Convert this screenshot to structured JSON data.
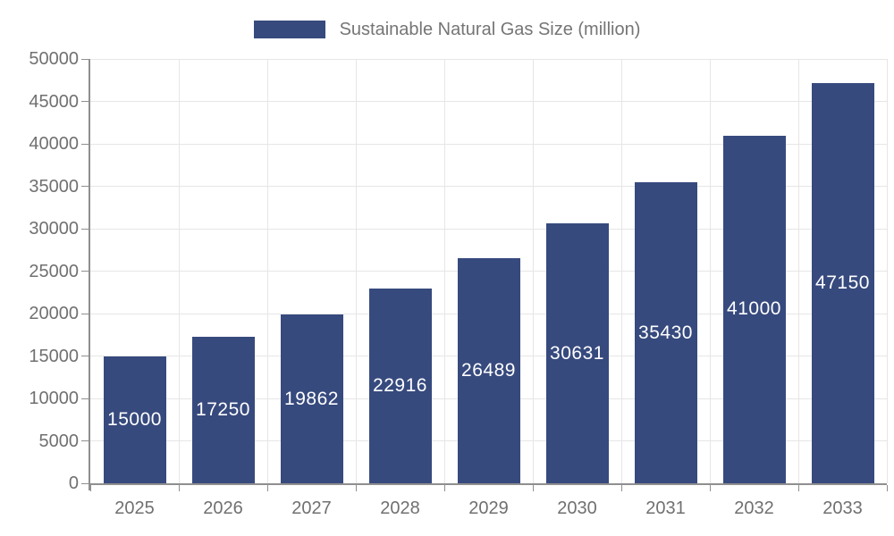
{
  "chart_data": {
    "type": "bar",
    "title": "Sustainable Natural Gas Size (million)",
    "categories": [
      "2025",
      "2026",
      "2027",
      "2028",
      "2029",
      "2030",
      "2031",
      "2032",
      "2033"
    ],
    "series": [
      {
        "name": "Sustainable Natural Gas Size (million)",
        "values": [
          15000,
          17250,
          19862,
          22916,
          26489,
          30631,
          35430,
          41000,
          47150
        ]
      }
    ],
    "bar_value_labels": [
      "15000",
      "17250",
      "19862",
      "22916",
      "26489",
      "30631",
      "35430",
      "41000",
      "47150"
    ],
    "xlabel": "",
    "ylabel": "",
    "ylim": [
      0,
      50000
    ],
    "yticks": [
      0,
      5000,
      10000,
      15000,
      20000,
      25000,
      30000,
      35000,
      40000,
      45000,
      50000
    ],
    "grid": true,
    "legend_position": "top-center",
    "colors": {
      "bar": "#374a7e",
      "grid": "#e6e6e6",
      "axis": "#8f8f8f",
      "tick_text": "#707070",
      "legend_text": "#757575",
      "bar_label_text": "#ffffff",
      "background": "#ffffff"
    }
  }
}
